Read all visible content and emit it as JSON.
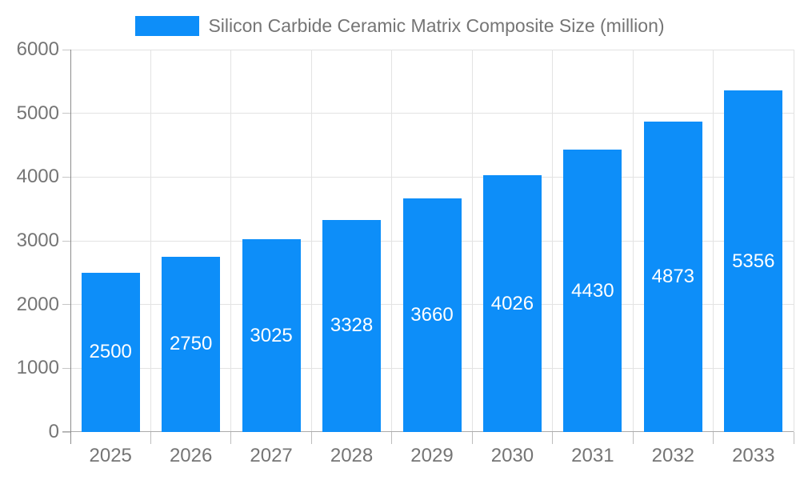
{
  "legend": {
    "series_label": "Silicon Carbide Ceramic Matrix Composite Size (million)",
    "swatch_color": "#0d8ef9"
  },
  "chart_data": {
    "type": "bar",
    "title": "Silicon Carbide Ceramic Matrix Composite Size (million)",
    "categories": [
      "2025",
      "2026",
      "2027",
      "2028",
      "2029",
      "2030",
      "2031",
      "2032",
      "2033"
    ],
    "values": [
      2500,
      2750,
      3025,
      3328,
      3660,
      4026,
      4430,
      4873,
      5356
    ],
    "series": [
      {
        "name": "Silicon Carbide Ceramic Matrix Composite Size (million)",
        "values": [
          2500,
          2750,
          3025,
          3328,
          3660,
          4026,
          4430,
          4873,
          5356
        ]
      }
    ],
    "xlabel": "",
    "ylabel": "",
    "ylim": [
      0,
      6000
    ],
    "y_ticks": [
      0,
      1000,
      2000,
      3000,
      4000,
      5000,
      6000
    ],
    "grid": true,
    "legend_position": "top-center",
    "value_labels": "inside-middle",
    "bar_color": "#0d8ef9",
    "value_label_color": "#ffffff"
  },
  "colors": {
    "bar": "#0d8ef9",
    "grid_line": "#e3e3e3",
    "axis_line_y": "#8c8c8c",
    "axis_line_x": "#ababab",
    "tick": "#c6c6c6",
    "axis_text": "#757575",
    "background": "#ffffff"
  }
}
